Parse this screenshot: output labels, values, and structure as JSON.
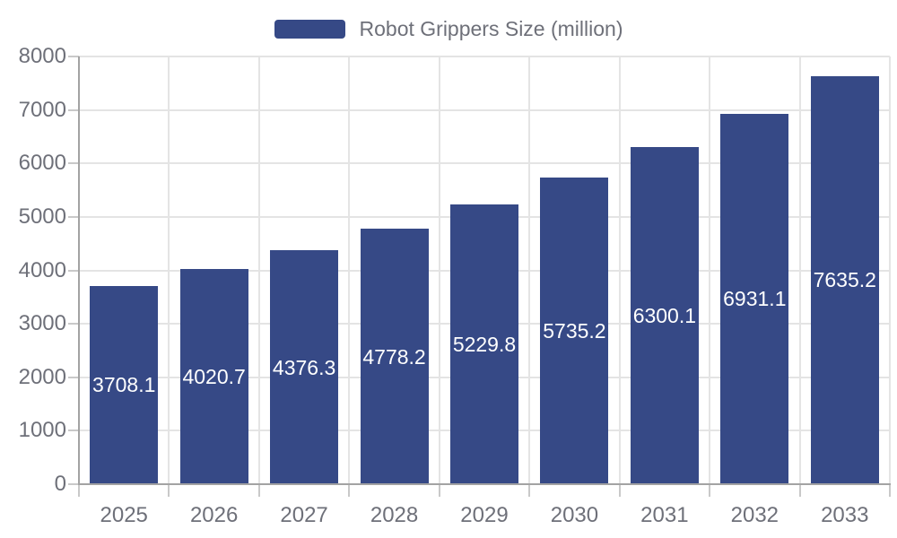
{
  "chart_data": {
    "type": "bar",
    "title": "Robot Grippers Size (million)",
    "legend": {
      "label": "Robot Grippers Size (million)",
      "position": "top-center"
    },
    "categories": [
      "2025",
      "2026",
      "2027",
      "2028",
      "2029",
      "2030",
      "2031",
      "2032",
      "2033"
    ],
    "series": [
      {
        "name": "Robot Grippers Size (million)",
        "values": [
          3708.1,
          4020.7,
          4376.3,
          4778.2,
          5229.8,
          5735.2,
          6300.1,
          6931.1,
          7635.2
        ]
      }
    ],
    "xlabel": "",
    "ylabel": "",
    "ylim": [
      0,
      8000
    ],
    "yticks": [
      0,
      1000,
      2000,
      3000,
      4000,
      5000,
      6000,
      7000,
      8000
    ],
    "grid": true,
    "value_labels": "inside-center",
    "colors": {
      "bar": "#364986",
      "grid": "#e4e4e4",
      "axis_line": "#a3a3a3",
      "tick": "#c9c9c9",
      "axis_text": "#6e7079",
      "legend_text": "#6e7079",
      "value_text": "#ffffff",
      "background": "#ffffff"
    }
  }
}
